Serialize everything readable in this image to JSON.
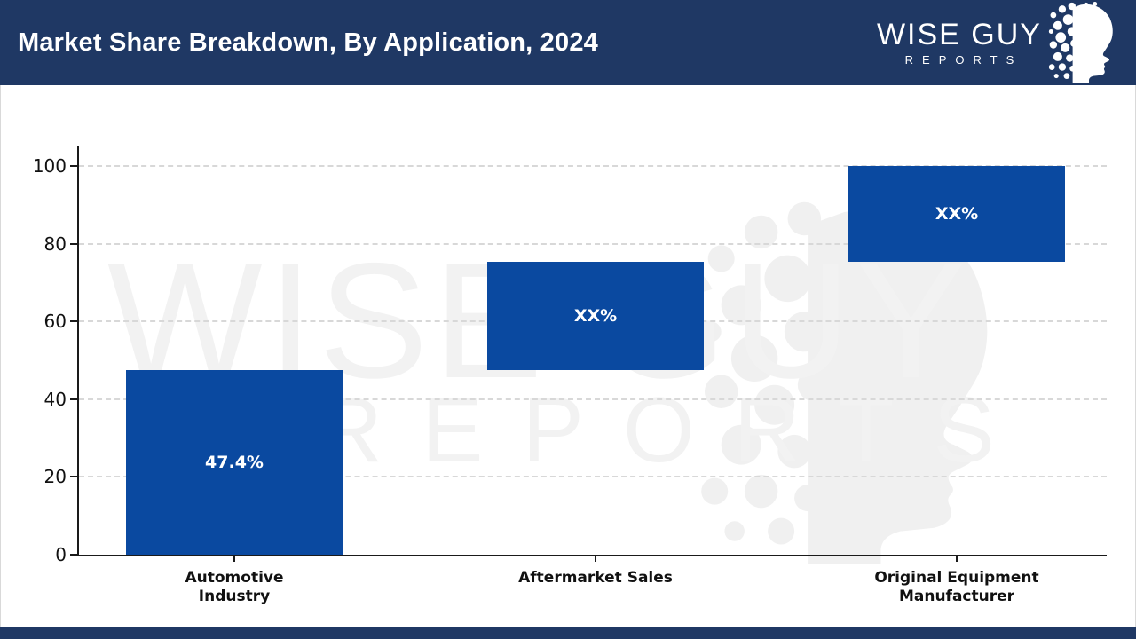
{
  "header": {
    "title": "Market Share Breakdown, By Application, 2024",
    "bg_color": "#1f3864",
    "logo": {
      "line1": "WISE GUY",
      "line2": "REPORTS"
    }
  },
  "watermark": {
    "line1": "WISE GUY",
    "line2": "REPORTS",
    "color": "#f2f2f2"
  },
  "chart_data": {
    "type": "bar",
    "subtype": "stacked-waterfall",
    "title": "Market Share Breakdown, By Application, 2024",
    "categories": [
      [
        "Automotive",
        "Industry"
      ],
      [
        "Aftermarket Sales"
      ],
      [
        "Original Equipment",
        "Manufacturer"
      ]
    ],
    "segments": [
      {
        "label": "47.4%",
        "start": 0,
        "end": 47.4
      },
      {
        "label": "XX%",
        "start": 47.4,
        "end": 75.4
      },
      {
        "label": "XX%",
        "start": 75.4,
        "end": 100
      }
    ],
    "yticks": [
      0,
      20,
      40,
      60,
      80,
      100
    ],
    "ylim": [
      0,
      105
    ],
    "bar_color": "#0a49a0",
    "axis_color": "#1a1a1a",
    "grid_color": "#d8d8d8",
    "grid": "horizontal-dashed",
    "legend": "none"
  }
}
